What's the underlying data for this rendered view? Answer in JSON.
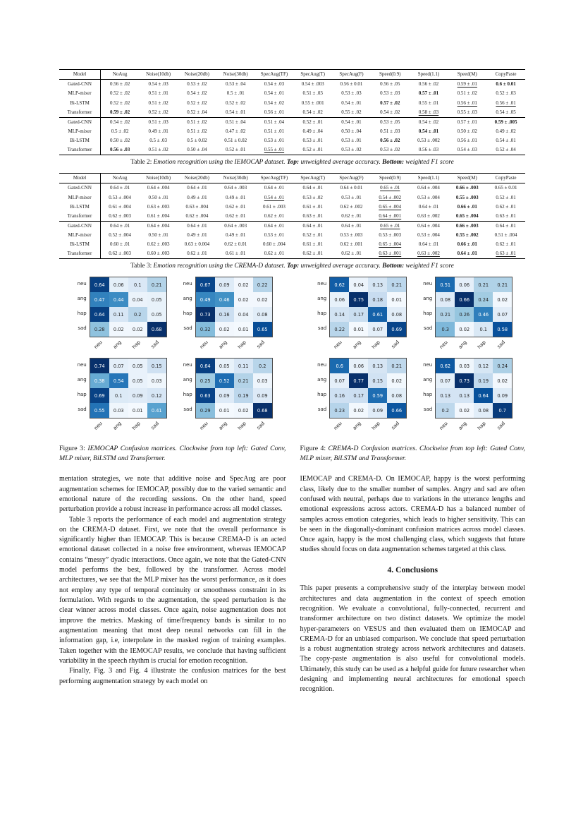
{
  "table2": {
    "headers": [
      "Model",
      "NoAug",
      "Noise(10db)",
      "Noise(20db)",
      "Noise(30db)",
      "SpecAug(TF)",
      "SpecAug(T)",
      "SpecAug(F)",
      "Speed(0.9)",
      "Speed(1.1)",
      "Speed(M)",
      "CopyPaste"
    ],
    "top_rows": [
      [
        "Gated-CNN",
        "0.56 ± .02",
        "0.54 ± .03",
        "0.53 ± .02",
        "0.53 ± .04",
        "0.54 ± .03",
        "0.54 ± .003",
        "0.56 ± 0.01",
        "0.56 ± .05",
        "0.56 ± .02",
        "u|0.59 ± .01",
        "b|0.6 ± 0.01"
      ],
      [
        "MLP-mixer",
        "0.52 ± .02",
        "0.51 ± .01",
        "0.54 ± .02",
        "0.5 ± .01",
        "0.54 ± .01",
        "0.51 ± .03",
        "0.53 ± .03",
        "0.53 ± .03",
        "b|0.57 ± .01",
        "0.51 ± .02",
        "0.52 ± .03"
      ],
      [
        "Bi-LSTM",
        "0.52 ± .02",
        "0.51 ± .02",
        "0.52 ± .02",
        "0.52 ± .02",
        "0.54 ± .02",
        "0.55 ± .001",
        "0.54 ± .01",
        "b|0.57 ± .02",
        "0.55 ± .01",
        "u|0.56 ± .01",
        "u|0.56 ± .01"
      ],
      [
        "Transformer",
        "b|0.59 ± .02",
        "0.52 ± .02",
        "0.52 ± .04",
        "0.54 ± .01",
        "0.56 ± .01",
        "0.54 ± .02",
        "0.55 ± .02",
        "0.54 ± .02",
        "u|0.58 ± .03",
        "0.55 ± .03",
        "0.54 ± .05"
      ]
    ],
    "bottom_rows": [
      [
        "Gated-CNN",
        "0.54 ± .02",
        "0.51 ± .03",
        "0.51 ± .02",
        "0.51 ± .04",
        "0.51 ± .04",
        "0.52 ± .01",
        "0.54 ± .01",
        "0.53 ± .05",
        "0.54 ± .02",
        "0.57 ± .01",
        "b|0.59 ± .005"
      ],
      [
        "MLP-mixer",
        "0.5 ± .02",
        "0.49 ± .01",
        "0.51 ± .02",
        "0.47 ± .02",
        "0.51 ± .01",
        "0.49 ± .04",
        "0.50 ± .04",
        "0.51 ± .03",
        "b|0.54 ± .01",
        "0.50 ± .02",
        "0.49 ± .02"
      ],
      [
        "Bi-LSTM",
        "0.50 ± .02",
        "0.5 ± .03",
        "0.5 ± 0.02",
        "0.51 ± 0.02",
        "0.53 ± .01",
        "0.53 ± .01",
        "0.53 ± .01",
        "b|0.56 ± .02",
        "0.53 ± .002",
        "0.56 ± .01",
        "0.54 ± .01"
      ],
      [
        "Transformer",
        "b|0.56 ± .03",
        "0.51 ± .02",
        "0.50 ± .04",
        "0.52 ± .01",
        "u|0.55 ± .01",
        "0.52 ± .01",
        "0.53 ± .02",
        "0.53 ± .02",
        "0.56 ± .03",
        "0.54 ± .03",
        "0.52 ± .04"
      ]
    ],
    "caption": {
      "label": "Table 2: ",
      "body": "Emotion recognition using the IEMOCAP dataset. ",
      "top_label": "Top:",
      "top_text": " unweighted average accuracy. ",
      "bottom_label": "Bottom:",
      "bottom_text": " weighted F1 score"
    }
  },
  "table3": {
    "headers": [
      "Model",
      "NoAug",
      "Noise(10db)",
      "Noise(20db)",
      "Noise(30db)",
      "SpecAug(TF)",
      "SpecAug(T)",
      "SpecAug(F)",
      "Speed(0.9)",
      "Speed(1.1)",
      "Speed(M)",
      "CopyPaste"
    ],
    "top_rows": [
      [
        "Gated-CNN",
        "0.64 ± .01",
        "0.64 ± .004",
        "0.64 ± .01",
        "0.64 ± .003",
        "0.64 ± .01",
        "0.64 ± .01",
        "0.64 ± 0.01",
        "u|0.65 ± .01",
        "0.64 ± .004",
        "b|0.66 ± .003",
        "0.65 ± 0.01"
      ],
      [
        "MLP-mixer",
        "0.53 ± .004",
        "0.50 ± .01",
        "0.49 ± .01",
        "0.49 ± .01",
        "u|0.54 ± .01",
        "0.53 ± .02",
        "0.53 ± .01",
        "u|0.54 ± .002",
        "0.53 ± .004",
        "b|0.55 ± .003",
        "0.52 ± .01"
      ],
      [
        "Bi-LSTM",
        "0.61 ± .004",
        "0.63 ± .003",
        "0.63 ± .004",
        "0.62 ± .01",
        "0.61 ± .003",
        "0.61 ± .01",
        "0.62 ± .002",
        "u|0.65 ± .004",
        "0.64 ± .01",
        "b|0.66 ± .01",
        "0.62 ± .01"
      ],
      [
        "Transformer",
        "0.62 ± .003",
        "0.61 ± .004",
        "0.62 ± .004",
        "0.62 ± .01",
        "0.62 ± .01",
        "0.63 ± .01",
        "0.62 ± .01",
        "u|0.64 ± .001",
        "0.63 ± .002",
        "b|0.65 ± .004",
        "0.63 ± .01"
      ]
    ],
    "bottom_rows": [
      [
        "Gated-CNN",
        "0.64 ± .01",
        "0.64 ± .004",
        "0.64 ± .01",
        "0.64 ± .003",
        "0.64 ± .01",
        "0.64 ± .01",
        "0.64 ± .01",
        "u|0.65 ± .01",
        "0.64 ± .004",
        "b|0.66 ± .003",
        "0.64 ± .01"
      ],
      [
        "MLP-mixer",
        "0.52 ± .004",
        "0.50 ± .01",
        "0.49 ± .01",
        "0.49 ± .01",
        "0.53 ± .01",
        "0.52 ± .01",
        "0.53 ± .003",
        "0.53 ± .003",
        "0.53 ± .004",
        "b|0.55 ± .002",
        "0.51 ± .004"
      ],
      [
        "Bi-LSTM",
        "0.60 ± .01",
        "0.62 ± .003",
        "0.63 ± 0.004",
        "0.62 ± 0.01",
        "0.60 ± .004",
        "0.61 ± .01",
        "0.62 ± .001",
        "u|0.65 ± .004",
        "0.64 ± .01",
        "b|0.66 ± .01",
        "0.62 ± .01"
      ],
      [
        "Transformer",
        "0.62 ± .003",
        "0.60 ± .003",
        "0.62 ± .01",
        "0.61 ± .01",
        "0.62 ± .01",
        "0.62 ± .01",
        "0.62 ± .01",
        "u|0.63 ± .001",
        "u|0.63 ± .002",
        "b|0.64 ± .01",
        "u|0.63 ± .01"
      ]
    ],
    "caption": {
      "label": "Table 3: ",
      "body": "Emotion recognition using the CREMA-D dataset. ",
      "top_label": "Top:",
      "top_text": " unweighted average accuracy. ",
      "bottom_label": "Bottom:",
      "bottom_text": " weighted F1 score"
    }
  },
  "figure3": {
    "caption": {
      "label": "Figure 3: ",
      "body": "IEMOCAP Confusion matrices. Clockwise from top left: Gated Conv, MLP mixer, BiLSTM and Transformer."
    }
  },
  "figure4": {
    "caption": {
      "label": "Figure 4: ",
      "body": "CREMA-D Confusion matrices. Clockwise from top left: Gated Conv, MLP mixer, BiLSTM and Transformer."
    }
  },
  "chart_data": [
    {
      "type": "heatmap",
      "dataset": "IEMOCAP",
      "model": "Gated Conv",
      "position": "top-left",
      "x_labels": [
        "neu",
        "ang",
        "hap",
        "sad"
      ],
      "y_labels": [
        "neu",
        "ang",
        "hap",
        "sad"
      ],
      "values": [
        [
          0.64,
          0.06,
          0.1,
          0.21
        ],
        [
          0.47,
          0.44,
          0.04,
          0.05
        ],
        [
          0.64,
          0.11,
          0.2,
          0.05
        ],
        [
          0.28,
          0.02,
          0.02,
          0.68
        ]
      ]
    },
    {
      "type": "heatmap",
      "dataset": "IEMOCAP",
      "model": "MLP mixer",
      "position": "top-right",
      "x_labels": [
        "neu",
        "ang",
        "hap",
        "sad"
      ],
      "y_labels": [
        "neu",
        "ang",
        "hap",
        "sad"
      ],
      "values": [
        [
          0.67,
          0.09,
          0.02,
          0.22
        ],
        [
          0.49,
          0.46,
          0.02,
          0.02
        ],
        [
          0.73,
          0.16,
          0.04,
          0.08
        ],
        [
          0.32,
          0.02,
          0.01,
          0.65
        ]
      ]
    },
    {
      "type": "heatmap",
      "dataset": "IEMOCAP",
      "model": "Transformer",
      "position": "bottom-left",
      "x_labels": [
        "neu",
        "ang",
        "hap",
        "sad"
      ],
      "y_labels": [
        "neu",
        "ang",
        "hap",
        "sad"
      ],
      "values": [
        [
          0.74,
          0.07,
          0.05,
          0.15
        ],
        [
          0.38,
          0.54,
          0.05,
          0.03
        ],
        [
          0.69,
          0.1,
          0.09,
          0.12
        ],
        [
          0.55,
          0.03,
          0.01,
          0.41
        ]
      ]
    },
    {
      "type": "heatmap",
      "dataset": "IEMOCAP",
      "model": "BiLSTM",
      "position": "bottom-right",
      "x_labels": [
        "neu",
        "ang",
        "hap",
        "sad"
      ],
      "y_labels": [
        "neu",
        "ang",
        "hap",
        "sad"
      ],
      "values": [
        [
          0.64,
          0.05,
          0.11,
          0.2
        ],
        [
          0.25,
          0.52,
          0.21,
          0.03
        ],
        [
          0.63,
          0.09,
          0.19,
          0.09
        ],
        [
          0.29,
          0.01,
          0.02,
          0.68
        ]
      ]
    },
    {
      "type": "heatmap",
      "dataset": "CREMA-D",
      "model": "Gated Conv",
      "position": "top-left",
      "x_labels": [
        "neu",
        "ang",
        "hap",
        "sad"
      ],
      "y_labels": [
        "neu",
        "ang",
        "hap",
        "sad"
      ],
      "values": [
        [
          0.62,
          0.04,
          0.13,
          0.21
        ],
        [
          0.06,
          0.75,
          0.18,
          0.01
        ],
        [
          0.14,
          0.17,
          0.61,
          0.08
        ],
        [
          0.22,
          0.01,
          0.07,
          0.69
        ]
      ]
    },
    {
      "type": "heatmap",
      "dataset": "CREMA-D",
      "model": "MLP mixer",
      "position": "top-right",
      "x_labels": [
        "neu",
        "ang",
        "hap",
        "sad"
      ],
      "y_labels": [
        "neu",
        "ang",
        "hap",
        "sad"
      ],
      "values": [
        [
          0.51,
          0.06,
          0.21,
          0.21
        ],
        [
          0.08,
          0.66,
          0.24,
          0.02
        ],
        [
          0.21,
          0.26,
          0.46,
          0.07
        ],
        [
          0.3,
          0.02,
          0.1,
          0.58
        ]
      ]
    },
    {
      "type": "heatmap",
      "dataset": "CREMA-D",
      "model": "Transformer",
      "position": "bottom-left",
      "x_labels": [
        "neu",
        "ang",
        "hap",
        "sad"
      ],
      "y_labels": [
        "neu",
        "ang",
        "hap",
        "sad"
      ],
      "values": [
        [
          0.6,
          0.06,
          0.13,
          0.21
        ],
        [
          0.07,
          0.77,
          0.15,
          0.02
        ],
        [
          0.16,
          0.17,
          0.59,
          0.08
        ],
        [
          0.23,
          0.02,
          0.09,
          0.66
        ]
      ]
    },
    {
      "type": "heatmap",
      "dataset": "CREMA-D",
      "model": "BiLSTM",
      "position": "bottom-right",
      "x_labels": [
        "neu",
        "ang",
        "hap",
        "sad"
      ],
      "y_labels": [
        "neu",
        "ang",
        "hap",
        "sad"
      ],
      "values": [
        [
          0.62,
          0.03,
          0.12,
          0.24
        ],
        [
          0.07,
          0.73,
          0.19,
          0.02
        ],
        [
          0.13,
          0.13,
          0.64,
          0.09
        ],
        [
          0.2,
          0.02,
          0.08,
          0.7
        ]
      ]
    }
  ],
  "body_text": {
    "left_paragraphs": [
      "mentation strategies, we note that additive noise and SpecAug are poor augmentation schemes for IEMOCAP, possibly due to the varied semantic and emotional nature of the recording sessions. On the other hand, speed perturbation provide a robust increase in performance across all model classes.",
      "Table 3 reports the performance of each model and augmentation strategy on the CREMA-D dataset. First, we note that the overall performance is significantly higher than IEMOCAP. This is because CREMA-D is an acted emotional dataset collected in a noise free environment, whereas IEMOCAP contains “messy” dyadic interactions. Once again, we note that the Gated-CNN model performs the best, followed by the transformer. Across model architectures, we see that the MLP mixer has the worst performance, as it does not employ any type of temporal continuity or smoothness constraint in its formulation. With regards to the augmentation, the speed perturbation is the clear winner across model classes. Once again, noise augmentation does not improve the metrics. Masking of time/frequency bands is similar to no augmentation meaning that most deep neural networks can fill in the information gap, i.e, interpolate in the masked region of training examples. Taken together with the IEMOCAP results, we conclude that having sufficient variability in the speech rhythm is crucial for emotion recognition.",
      "Finally, Fig. 3 and Fig. 4 illustrate the confusion matrices for the best performing augmentation strategy by each model on"
    ],
    "right_paragraph": "IEMOCAP and CREMA-D. On IEMOCAP, happy is the worst performing class, likely due to the smaller number of samples. Angry and sad are often confused with neutral, perhaps due to variations in the utterance lengths and emotional expressions across actors. CREMA-D has a balanced number of samples across emotion categories, which leads to higher sensitivity. This can be seen in the diagonally-dominant confusion matrices across model classes. Once again, happy is the most challenging class, which suggests that future studies should focus on data augmentation schemes targeted at this class.",
    "section_heading": "4. Conclusions",
    "conclusion_paragraph": "This paper presents a comprehensive study of the interplay between model architectures and data augmentation in the context of speech emotion recognition. We evaluate a convolutional, fully-connected, recurrent and transformer architecture on two distinct datasets. We optimize the model hyper-parameters on VESUS and then evaluated them on IEMOCAP and CREMA-D for an unbiased comparison. We conclude that speed perturbation is a robust augmentation strategy across network architectures and datasets. The copy-paste augmentation is also useful for convolutional models. Ultimately, this study can be used as a helpful guide for future researcher when designing and implementing neural architectures for emotional speech recognition."
  }
}
